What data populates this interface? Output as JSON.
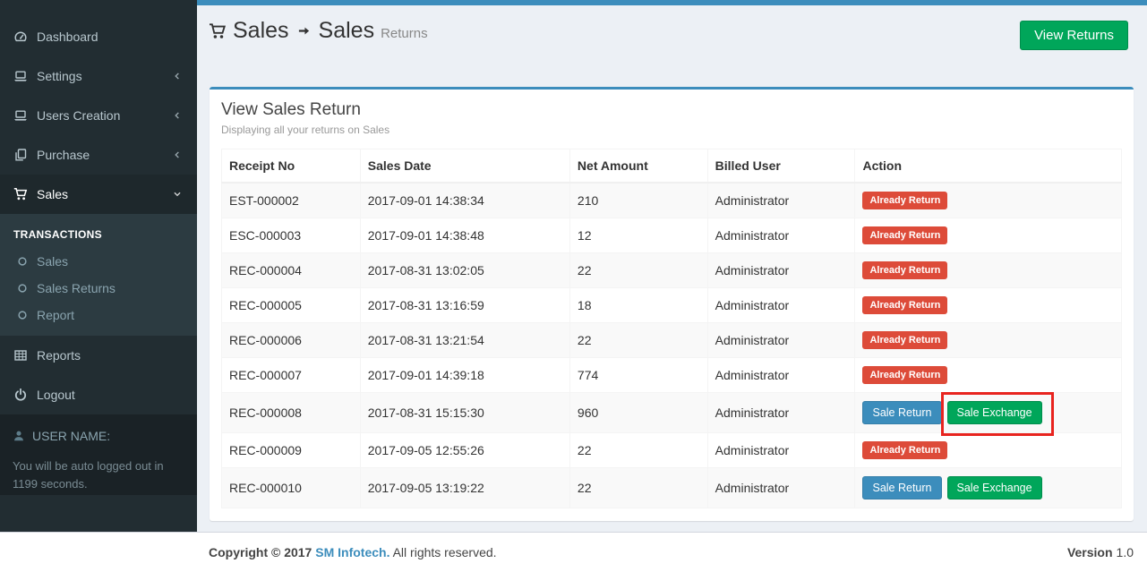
{
  "colors": {
    "accent_blue": "#3c8dbc",
    "success_green": "#00a65a",
    "danger_red": "#dd4b39",
    "highlight_red": "#e8241f",
    "sidebar_bg": "#222d32",
    "submenu_bg": "#2c3b41",
    "active_item_bg": "#1e282c",
    "content_bg": "#ecf0f5"
  },
  "sidebar": {
    "items": [
      {
        "label": "Dashboard",
        "icon": "dashboard-icon"
      },
      {
        "label": "Settings",
        "icon": "laptop-icon",
        "chevron": "left"
      },
      {
        "label": "Users Creation",
        "icon": "laptop-icon",
        "chevron": "left"
      },
      {
        "label": "Purchase",
        "icon": "copy-icon",
        "chevron": "left"
      },
      {
        "label": "Sales",
        "icon": "cart-icon",
        "chevron": "down",
        "active": true
      }
    ],
    "submenu_header": "TRANSACTIONS",
    "submenu_items": [
      {
        "label": "Sales"
      },
      {
        "label": "Sales Returns"
      },
      {
        "label": "Report"
      }
    ],
    "bottom_items": [
      {
        "label": "Reports",
        "icon": "table-icon"
      },
      {
        "label": "Logout",
        "icon": "power-icon"
      }
    ],
    "user_label": "USER NAME:",
    "auto_logout_note": "You will be auto logged out in 1199 seconds."
  },
  "header": {
    "title_primary": "Sales",
    "title_secondary": "Sales",
    "title_sub": "Returns",
    "view_returns_label": "View Returns"
  },
  "panel": {
    "title": "View Sales Return",
    "subtitle": "Displaying all your returns on Sales"
  },
  "table": {
    "columns": [
      "Receipt No",
      "Sales Date",
      "Net Amount",
      "Billed User",
      "Action"
    ],
    "rows": [
      {
        "receipt_no": "EST-000002",
        "sales_date": "2017-09-01 14:38:34",
        "net_amount": "210",
        "billed_user": "Administrator",
        "actions": [
          {
            "label": "Already Return",
            "style": "danger"
          }
        ]
      },
      {
        "receipt_no": "ESC-000003",
        "sales_date": "2017-09-01 14:38:48",
        "net_amount": "12",
        "billed_user": "Administrator",
        "actions": [
          {
            "label": "Already Return",
            "style": "danger"
          }
        ]
      },
      {
        "receipt_no": "REC-000004",
        "sales_date": "2017-08-31 13:02:05",
        "net_amount": "22",
        "billed_user": "Administrator",
        "actions": [
          {
            "label": "Already Return",
            "style": "danger"
          }
        ]
      },
      {
        "receipt_no": "REC-000005",
        "sales_date": "2017-08-31 13:16:59",
        "net_amount": "18",
        "billed_user": "Administrator",
        "actions": [
          {
            "label": "Already Return",
            "style": "danger"
          }
        ]
      },
      {
        "receipt_no": "REC-000006",
        "sales_date": "2017-08-31 13:21:54",
        "net_amount": "22",
        "billed_user": "Administrator",
        "actions": [
          {
            "label": "Already Return",
            "style": "danger"
          }
        ]
      },
      {
        "receipt_no": "REC-000007",
        "sales_date": "2017-09-01 14:39:18",
        "net_amount": "774",
        "billed_user": "Administrator",
        "actions": [
          {
            "label": "Already Return",
            "style": "danger"
          }
        ]
      },
      {
        "receipt_no": "REC-000008",
        "sales_date": "2017-08-31 15:15:30",
        "net_amount": "960",
        "billed_user": "Administrator",
        "actions": [
          {
            "label": "Sale Return",
            "style": "info"
          },
          {
            "label": "Sale Exchange",
            "style": "success",
            "highlighted": true
          }
        ]
      },
      {
        "receipt_no": "REC-000009",
        "sales_date": "2017-09-05 12:55:26",
        "net_amount": "22",
        "billed_user": "Administrator",
        "actions": [
          {
            "label": "Already Return",
            "style": "danger"
          }
        ]
      },
      {
        "receipt_no": "REC-000010",
        "sales_date": "2017-09-05 13:19:22",
        "net_amount": "22",
        "billed_user": "Administrator",
        "actions": [
          {
            "label": "Sale Return",
            "style": "info"
          },
          {
            "label": "Sale Exchange",
            "style": "success"
          }
        ]
      }
    ]
  },
  "footer": {
    "copyright_bold": "Copyright © 2017",
    "company_link": "SM Infotech.",
    "rights": "All rights reserved.",
    "version_label": "Version",
    "version_value": "1.0"
  }
}
